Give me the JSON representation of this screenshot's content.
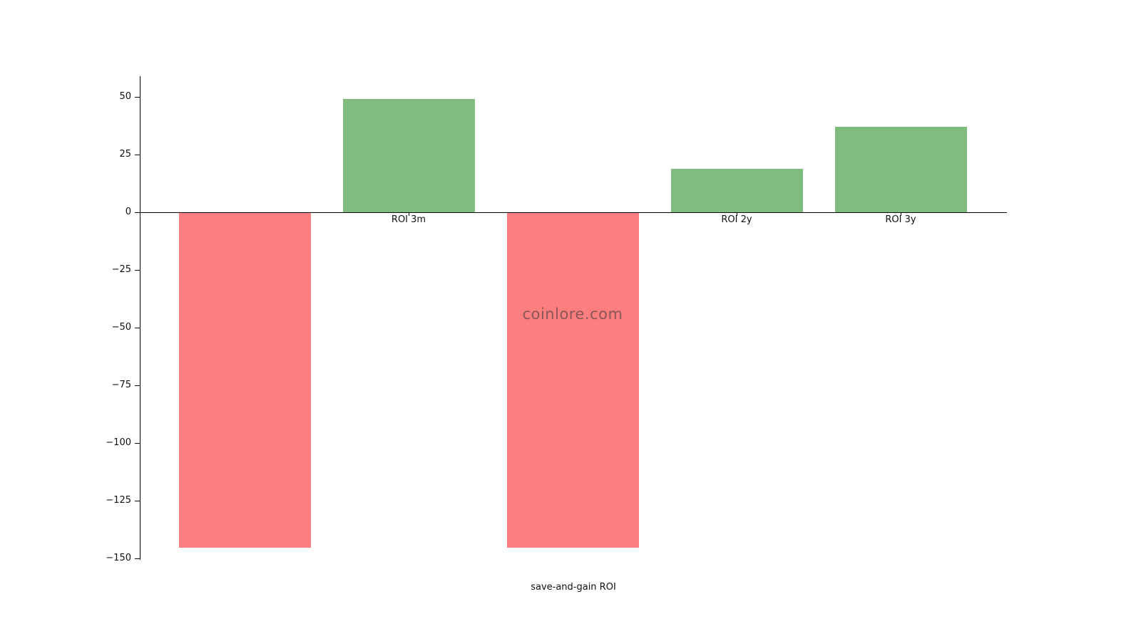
{
  "chart_data": {
    "type": "bar",
    "categories": [
      null,
      "ROI 3m",
      null,
      "ROI 2y",
      "ROI 3y"
    ],
    "values": [
      -145,
      49,
      -145,
      19,
      37
    ],
    "bar_colors": [
      "#fc7e7e",
      "#7fbc7d",
      "#fc7e7e",
      "#7fbc7d",
      "#7fbc7d"
    ],
    "title": "save-and-gain ROI",
    "watermark": "coinlore.com",
    "xlabel": "",
    "ylabel": "",
    "ylim": [
      -150.5,
      59
    ],
    "yticks": [
      "50",
      "25",
      "0",
      "−25",
      "−50",
      "−75",
      "−100",
      "−125",
      "−150"
    ],
    "ytick_values": [
      50,
      25,
      0,
      -25,
      -50,
      -75,
      -100,
      -125,
      -150
    ],
    "grid": false,
    "legend": null,
    "colors": {
      "positive": "#7fbc7d",
      "negative": "#fc7e7e",
      "axis": "#000000",
      "watermark_text": "rgba(60,60,60,0.6)"
    }
  }
}
